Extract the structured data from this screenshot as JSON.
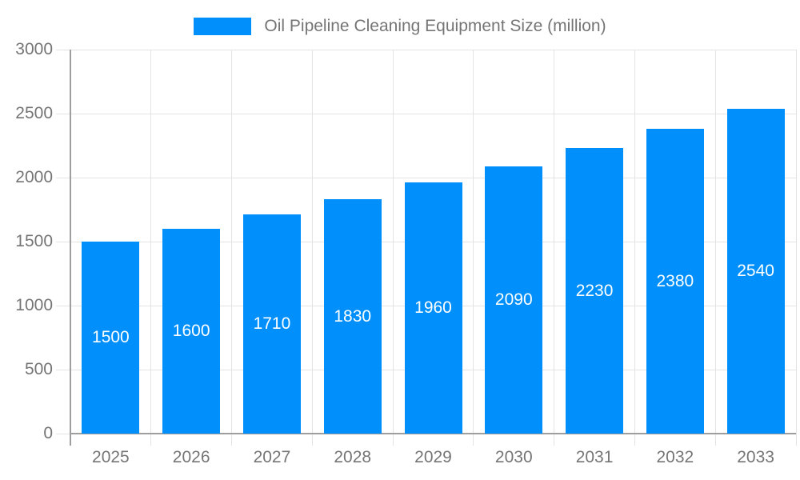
{
  "legend": {
    "label": "Oil Pipeline Cleaning Equipment Size (million)"
  },
  "colors": {
    "bar": "#008FFB",
    "bar_label": "#FFFFFF",
    "axis_text": "#757575",
    "axis_line": "#9E9E9E",
    "grid_line": "#E3E3E3",
    "background": "#FFFFFF"
  },
  "chart_data": {
    "type": "bar",
    "title": "Oil Pipeline Cleaning Equipment Size (million)",
    "categories": [
      "2025",
      "2026",
      "2027",
      "2028",
      "2029",
      "2030",
      "2031",
      "2032",
      "2033"
    ],
    "values": [
      1500,
      1600,
      1710,
      1830,
      1960,
      2090,
      2230,
      2380,
      2540
    ],
    "xlabel": "",
    "ylabel": "",
    "ylim": [
      0,
      3000
    ],
    "yticks": [
      0,
      500,
      1000,
      1500,
      2000,
      2500,
      3000
    ],
    "grid": true,
    "legend_position": "top",
    "bar_labels": "inside-center"
  }
}
